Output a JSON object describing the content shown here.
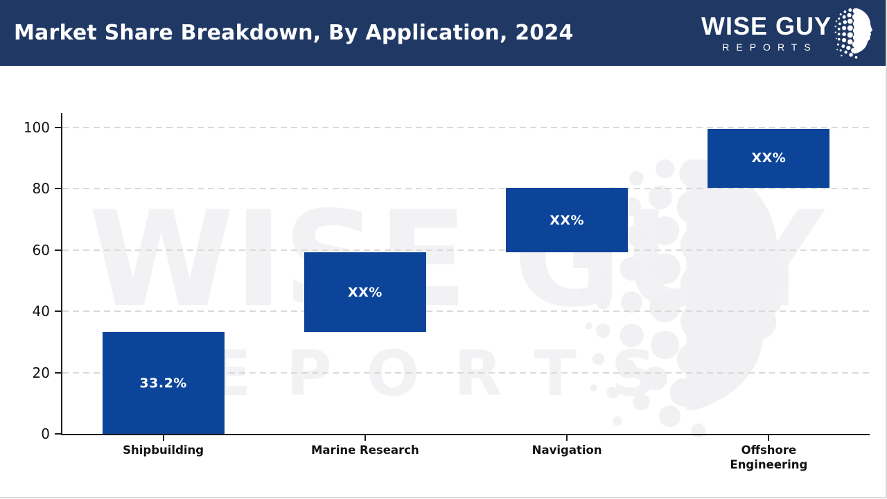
{
  "header": {
    "title": "Market Share Breakdown, By Application, 2024",
    "logo": {
      "line1": "WISE GUY",
      "line2": "REPORTS"
    }
  },
  "watermark": {
    "line1": "WISE GUY",
    "line2": "REPORTS"
  },
  "colors": {
    "header_bg": "#203864",
    "bar": "#0c4499",
    "grid": "#d9d9d9",
    "axis": "#1a1a1a",
    "watermark": "#f2f2f4"
  },
  "chart_data": {
    "type": "bar",
    "subtype": "waterfall",
    "title": "Market Share Breakdown, By Application, 2024",
    "xlabel": "",
    "ylabel": "",
    "ylim": [
      0,
      104.7
    ],
    "yticks": [
      0,
      20,
      40,
      60,
      80,
      100
    ],
    "grid": "dashed-horizontal",
    "legend": "none",
    "categories": [
      "Shipbuilding",
      "Marine Research",
      "Navigation",
      "Offshore Engineering"
    ],
    "segments": [
      {
        "category": "Shipbuilding",
        "start": 0,
        "end": 33.2,
        "label": "33.2%"
      },
      {
        "category": "Marine Research",
        "start": 33.2,
        "end": 59.2,
        "label": "XX%"
      },
      {
        "category": "Navigation",
        "start": 59.2,
        "end": 80.3,
        "label": "XX%"
      },
      {
        "category": "Offshore Engineering",
        "start": 80.3,
        "end": 99.5,
        "label": "XX%"
      }
    ]
  }
}
